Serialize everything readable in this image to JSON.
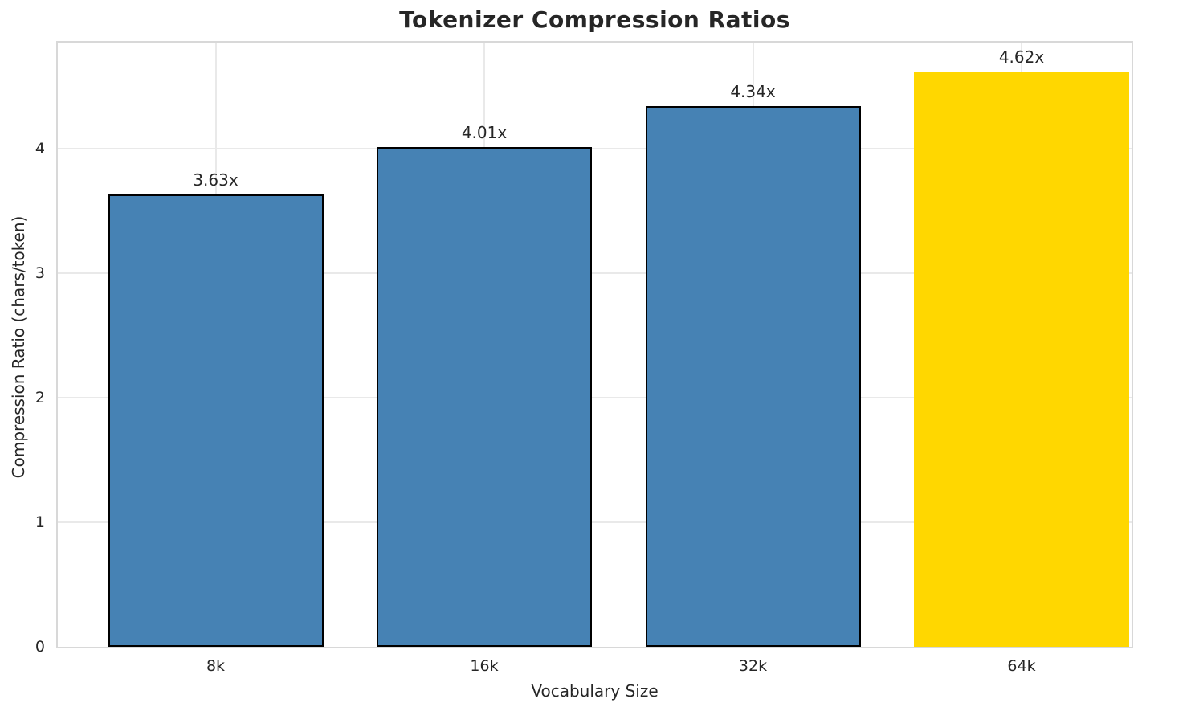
{
  "chart_data": {
    "type": "bar",
    "title": "Tokenizer Compression Ratios",
    "xlabel": "Vocabulary Size",
    "ylabel": "Compression Ratio (chars/token)",
    "categories": [
      "8k",
      "16k",
      "32k",
      "64k"
    ],
    "values": [
      3.63,
      4.01,
      4.34,
      4.62
    ],
    "bar_labels": [
      "3.63x",
      "4.01x",
      "4.34x",
      "4.62x"
    ],
    "yticks": [
      0,
      1,
      2,
      3,
      4
    ],
    "ylim": [
      0,
      4.85
    ],
    "grid": true,
    "legend": "none",
    "bar_colors": [
      "#4682B4",
      "#4682B4",
      "#4682B4",
      "#FFD700"
    ],
    "bar_edge_colors": [
      "#000000",
      "#000000",
      "#000000",
      "none"
    ],
    "highlight_index": 3,
    "accent_color": "#4682B4",
    "highlight_color": "#FFD700",
    "grid_color": "#e9e9e9",
    "spine_color": "#d8d8d8",
    "text_color": "#262626"
  }
}
